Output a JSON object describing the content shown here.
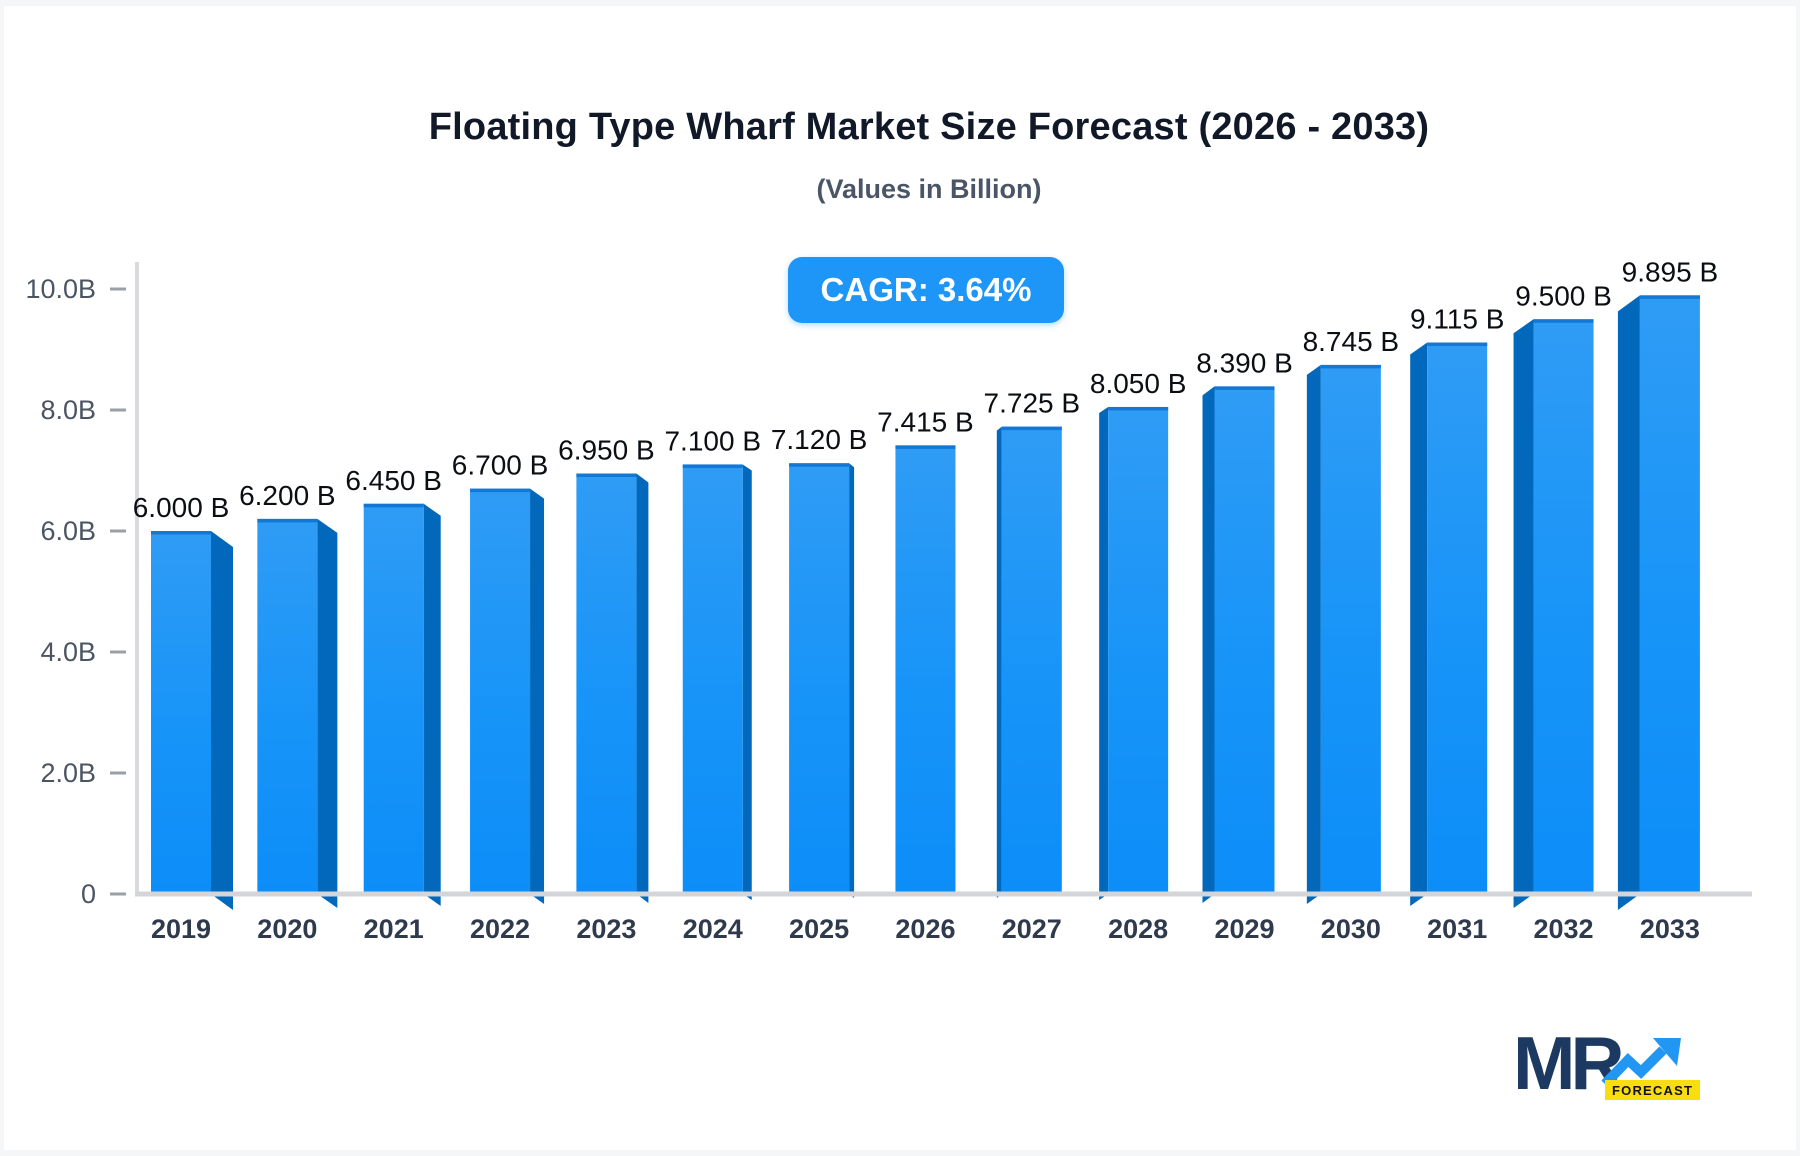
{
  "header": {
    "title": "Floating Type Wharf Market Size Forecast (2026 - 2033)",
    "subtitle": "(Values in Billion)",
    "cagr_badge": "CAGR: 3.64%"
  },
  "logo": {
    "text": "MR",
    "sub": "FORECAST",
    "arrow_icon": "trend-up-arrow"
  },
  "colors": {
    "bar_front_top": "#2F9CF5",
    "bar_front_mid": "#1794F8",
    "bar_front_bottom": "#0C8DF8",
    "bar_side": "#0268BB",
    "bar_top_strip": "#1377D4",
    "axis_line": "#D9DADD",
    "baseline": "#D4D5D8",
    "tick_dash": "#9AA0A8",
    "ytick_text": "#4B5563",
    "xtick_text": "#2F3B4C",
    "value_label_text": "#0B0F14",
    "badge_bg": "#1E96F8",
    "logo_navy": "#1C3A61",
    "logo_blue": "#2196F3",
    "logo_yellow": "#F8DE0E"
  },
  "chart_data": {
    "type": "bar",
    "title": "Floating Type Wharf Market Size Forecast (2026 - 2033)",
    "subtitle": "(Values in Billion)",
    "annotation": "CAGR: 3.64%",
    "categories": [
      "2019",
      "2020",
      "2021",
      "2022",
      "2023",
      "2024",
      "2025",
      "2026",
      "2027",
      "2028",
      "2029",
      "2030",
      "2031",
      "2032",
      "2033"
    ],
    "values": [
      6.0,
      6.2,
      6.45,
      6.7,
      6.95,
      7.1,
      7.12,
      7.415,
      7.725,
      8.05,
      8.39,
      8.745,
      9.115,
      9.5,
      9.895
    ],
    "value_labels": [
      "6.000 B",
      "6.200 B",
      "6.450 B",
      "6.700 B",
      "6.950 B",
      "7.100 B",
      "7.120 B",
      "7.415 B",
      "7.725 B",
      "8.050 B",
      "8.390 B",
      "8.745 B",
      "9.115 B",
      "9.500 B",
      "9.895 B"
    ],
    "unit": "Billion",
    "xlabel": "",
    "ylabel": "",
    "ylim": [
      0,
      10
    ],
    "grid": false,
    "legend": "none",
    "style": "pseudo-3d-bars",
    "yticks": [
      {
        "value": 0,
        "label": "0"
      },
      {
        "value": 2,
        "label": "2.0B"
      },
      {
        "value": 4,
        "label": "4.0B"
      },
      {
        "value": 6,
        "label": "6.0B"
      },
      {
        "value": 8,
        "label": "8.0B"
      },
      {
        "value": 10,
        "label": "10.0B"
      }
    ]
  }
}
